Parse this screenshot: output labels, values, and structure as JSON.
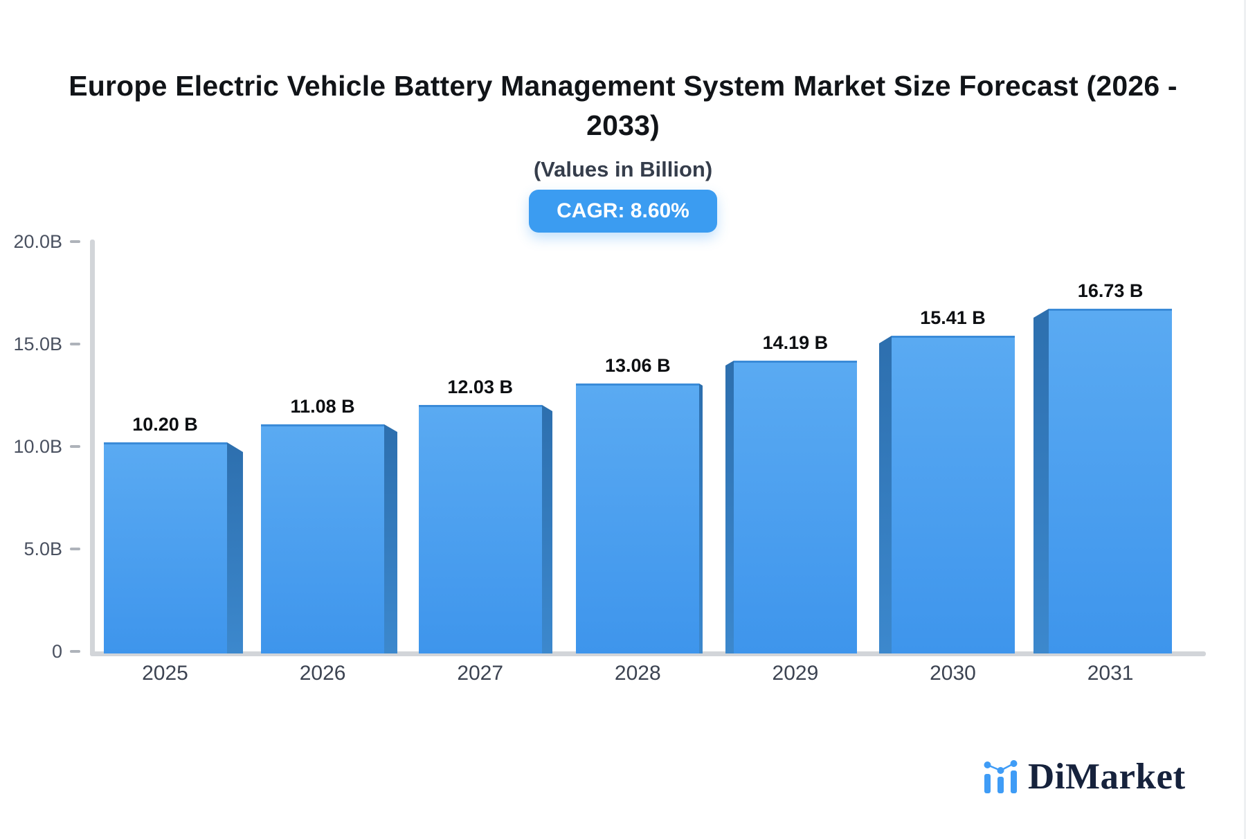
{
  "header": {
    "title_line1": "Europe Electric Vehicle Battery Management System Market Size Forecast (2026 -",
    "title_line2": "2033)",
    "subtitle": "(Values in Billion)",
    "cagr_label": "CAGR: 8.60%"
  },
  "chart_data": {
    "type": "bar",
    "title": "Europe Electric Vehicle Battery Management System Market Size Forecast (2026 - 2033)",
    "subtitle": "(Values in Billion)",
    "annotation_badge": "CAGR: 8.60%",
    "categories": [
      "2025",
      "2026",
      "2027",
      "2028",
      "2029",
      "2030",
      "2031"
    ],
    "values": [
      10.2,
      11.08,
      12.03,
      13.06,
      14.19,
      15.41,
      16.73
    ],
    "value_labels": [
      "10.20 B",
      "11.08 B",
      "12.03 B",
      "13.06 B",
      "14.19 B",
      "15.41 B",
      "16.73 B"
    ],
    "unit": "B",
    "ylim": [
      0,
      20
    ],
    "y_ticks": [
      {
        "label": "20.0B",
        "value": 20
      },
      {
        "label": "15.0B",
        "value": 15
      },
      {
        "label": "10.0B",
        "value": 10
      },
      {
        "label": "5.0B",
        "value": 5
      },
      {
        "label": "0",
        "value": 0
      }
    ],
    "grid": false,
    "legend": false,
    "bar_style_3d": true,
    "colors": {
      "face_top": "#5aaaf2",
      "face_bottom": "#3e95ec",
      "face_edge": "#3a8bd8",
      "side_top": "#2d6fae",
      "side_bottom": "#3c88cd",
      "axis": "#d2d5d9",
      "accent": "#3b9cf1"
    }
  },
  "branding": {
    "logo_text": "DiMarket",
    "logo_icon": "mini-bar-chart-icon",
    "logo_blue": "#3f9cf6",
    "logo_text_color": "#16223c"
  }
}
